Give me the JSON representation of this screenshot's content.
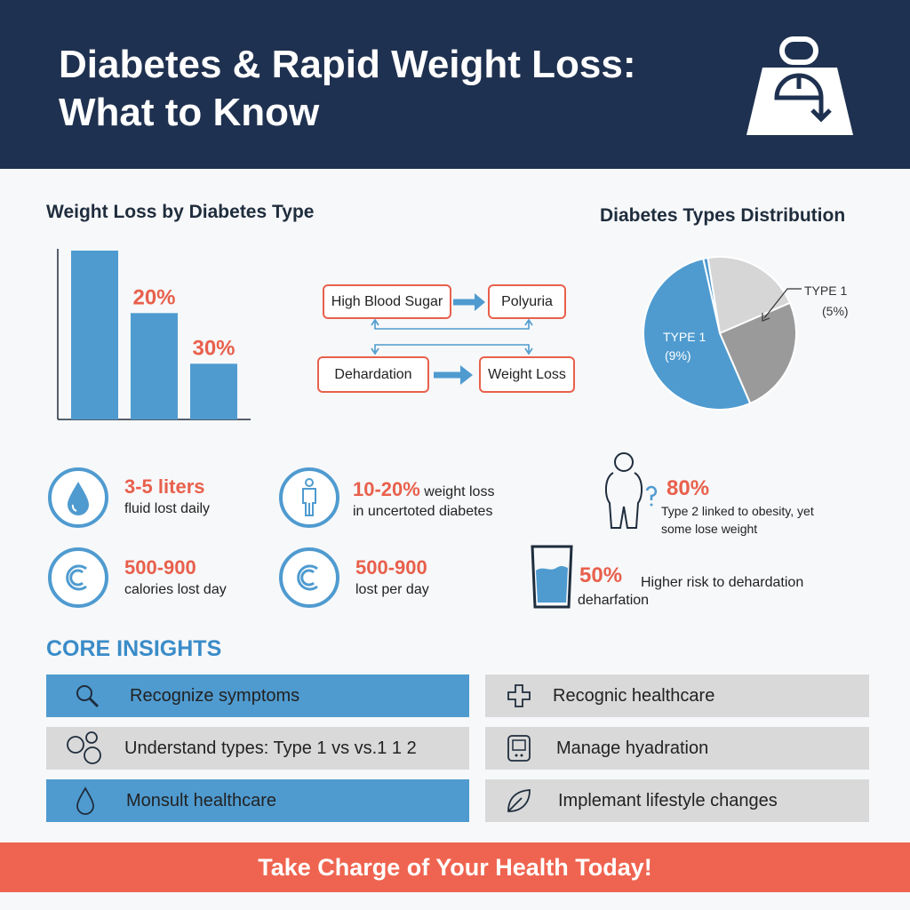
{
  "header": {
    "title_line1": "Diabetes & Rapid Weight Loss:",
    "title_line2": "What to Know",
    "icon": "weight-scale-down-icon",
    "bg_color": "#1f3150"
  },
  "chart_data": [
    {
      "type": "bar",
      "title": "Weight Loss by Diabetes Type",
      "categories": [
        "",
        "",
        ""
      ],
      "values": [
        100,
        63,
        33
      ],
      "data_labels": [
        "",
        "20%",
        "30%"
      ],
      "color": "#4f9bd0",
      "label_color": "#e8604c"
    },
    {
      "type": "pie",
      "title": "Diabetes Types Distribution",
      "slices": [
        {
          "value": 1,
          "color": "#4f9bd0"
        },
        {
          "value": 21,
          "color": "#d6d6d6"
        },
        {
          "value": 25,
          "color": "#9a9a9a"
        },
        {
          "value": 53,
          "color": "#4f9bd0"
        }
      ],
      "labels": [
        {
          "line1": "TYPE 1",
          "line2": "(9%)"
        },
        {
          "line1": "TYPE 1",
          "line2": "(5%)"
        }
      ]
    }
  ],
  "flow": {
    "nodes": [
      "High Blood Sugar",
      "Polyuria",
      "Dehardation",
      "Weight Loss"
    ]
  },
  "stats": [
    {
      "icon": "water-drop-icon",
      "big": "3-5 liters",
      "small": "fluid lost daily"
    },
    {
      "icon": "person-icon",
      "big": "10-20%",
      "inline": " weight loss",
      "small": "in uncertoted diabetes"
    },
    {
      "icon": "calorie-icon",
      "big": "500-900",
      "small": "calories lost day"
    },
    {
      "icon": "calorie-icon",
      "big": "500-900",
      "small": "lost per day"
    },
    {
      "icon": "obese-person-question-icon",
      "big": "80%",
      "small1": "Type 2 linked to obesity, yet",
      "small2": "some lose weight"
    },
    {
      "icon": "water-glass-icon",
      "big": "50%",
      "inline": "Higher risk to dehardation",
      "small": "deharfation"
    }
  ],
  "insights": {
    "title": "CORE INSIGHTS",
    "items": [
      {
        "icon": "magnifier-icon",
        "label": "Recognize symptoms",
        "style": "blue"
      },
      {
        "icon": "medical-cross-icon",
        "label": "Recognic healthcare",
        "style": "gray"
      },
      {
        "icon": "circles-icon",
        "label": "Understand types: Type 1 vs vs.1 1 2",
        "style": "gray"
      },
      {
        "icon": "glucose-meter-icon",
        "label": "Manage hyadration",
        "style": "gray"
      },
      {
        "icon": "water-drop-icon",
        "label": "Monsult healthcare",
        "style": "blue"
      },
      {
        "icon": "leaf-icon",
        "label": "Implemant lifestyle changes",
        "style": "gray"
      }
    ]
  },
  "footer": {
    "cta": "Take Charge of Your Health Today!",
    "color": "#ef6450"
  }
}
